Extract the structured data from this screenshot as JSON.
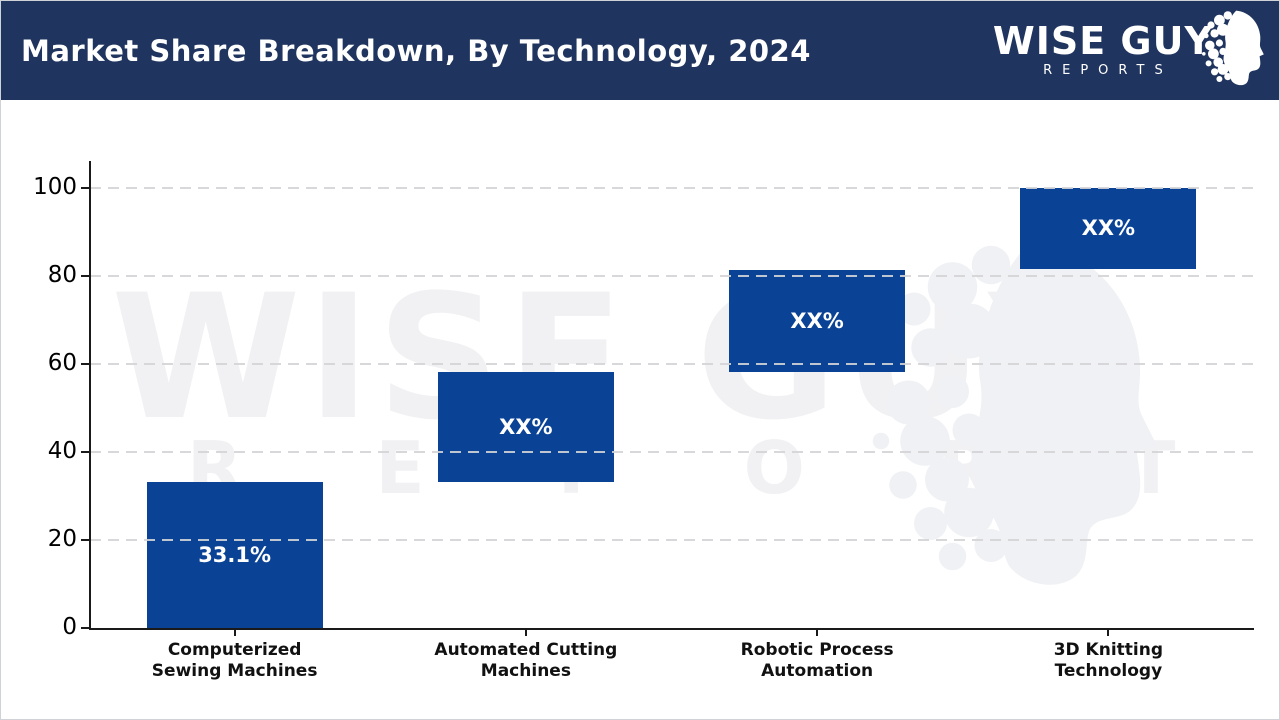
{
  "header": {
    "title": "Market Share Breakdown, By Technology, 2024",
    "logo": {
      "line1": "WISE GUY",
      "line2": "REPORTS"
    },
    "bg_color": "#1f345e"
  },
  "watermark": {
    "line1": "WISE GUY",
    "line2": "R E P O R T S"
  },
  "chart_data": {
    "type": "bar",
    "variant": "floating-waterfall",
    "title": "Market Share Breakdown, By Technology, 2024",
    "categories": [
      "Computerized Sewing Machines",
      "Automated Cutting Machines",
      "Robotic Process Automation",
      "3D Knitting Technology"
    ],
    "segments": [
      {
        "category_lines": [
          "Computerized",
          "Sewing Machines"
        ],
        "start": 0,
        "end": 33.1,
        "label": "33.1%"
      },
      {
        "category_lines": [
          "Automated Cutting",
          "Machines"
        ],
        "start": 33.1,
        "end": 58.1,
        "label": "XX%"
      },
      {
        "category_lines": [
          "Robotic Process",
          "Automation"
        ],
        "start": 58.2,
        "end": 81.4,
        "label": "XX%"
      },
      {
        "category_lines": [
          "3D Knitting",
          "Technology"
        ],
        "start": 81.7,
        "end": 100,
        "label": "XX%"
      }
    ],
    "y_ticks": [
      0,
      20,
      40,
      60,
      80,
      100
    ],
    "ylim": [
      0,
      106
    ],
    "xlabel": "",
    "ylabel": "",
    "grid": "dashed-horizontal-over-bars",
    "legend": "none",
    "bar_color": "#0a4296",
    "bar_label_color": "#ffffff",
    "axis_color": "#1a1a1a"
  }
}
